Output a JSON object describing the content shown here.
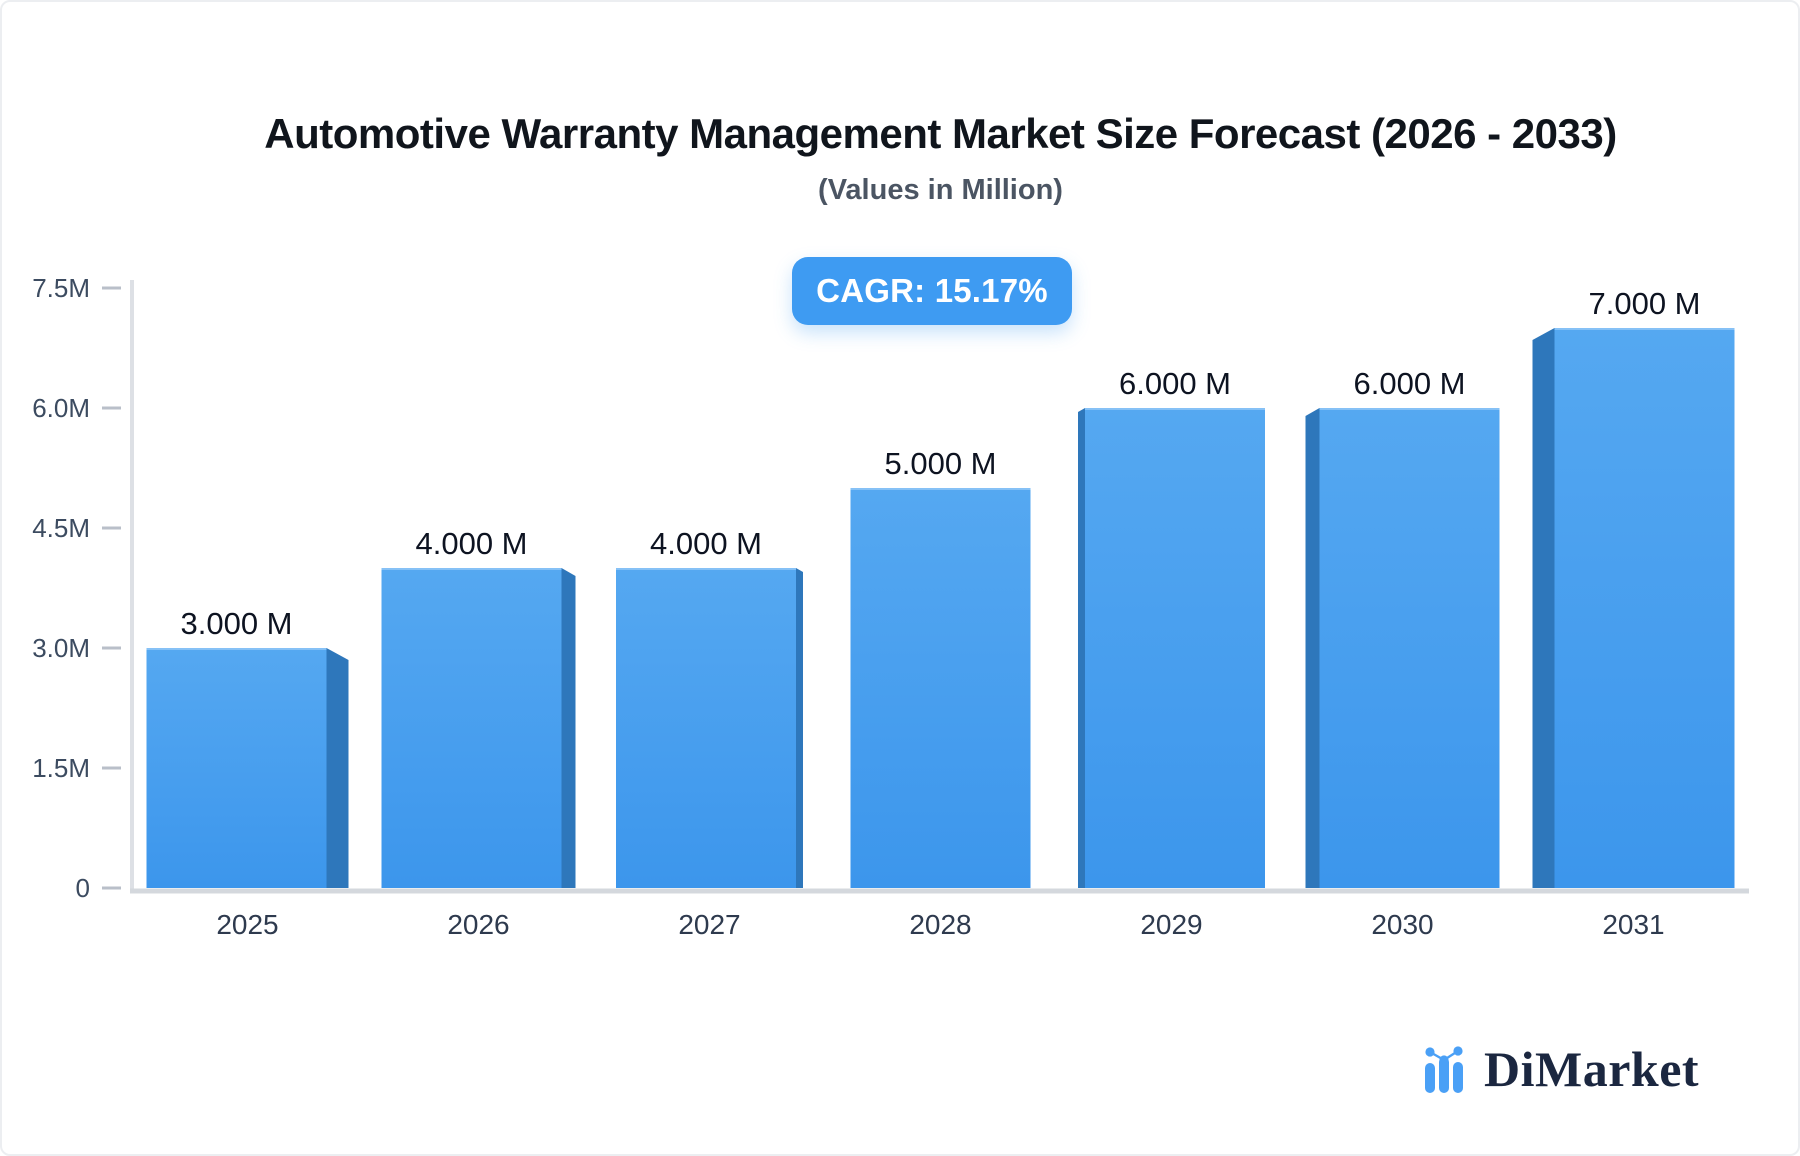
{
  "header": {
    "title": "Automotive Warranty Management Market Size Forecast (2026 - 2033)",
    "subtitle": "(Values in Million)",
    "cagr_label": "CAGR: 15.17%"
  },
  "chart_data": {
    "type": "bar",
    "title": "Automotive Warranty Management Market Size Forecast (2026 - 2033)",
    "subtitle": "(Values in Million)",
    "unit": "Million",
    "categories": [
      "2025",
      "2026",
      "2027",
      "2028",
      "2029",
      "2030",
      "2031"
    ],
    "values": [
      3,
      4,
      4,
      5,
      6,
      6,
      7
    ],
    "bar_labels": [
      "3.000 M",
      "4.000 M",
      "4.000 M",
      "5.000 M",
      "6.000 M",
      "6.000 M",
      "7.000 M"
    ],
    "ytick_labels": [
      "7.5M",
      "6.0M",
      "4.5M",
      "3.0M",
      "1.5M",
      "0"
    ],
    "ytick_values": [
      7.5,
      6.0,
      4.5,
      3.0,
      1.5,
      0
    ],
    "ylim": [
      0,
      7.5
    ],
    "xlabel": "",
    "ylabel": "",
    "grid": "off",
    "legend": "none",
    "cagr": "15.17%",
    "bar_front_color_top": "#55a8f1",
    "bar_front_color_bottom": "#3c96ec",
    "bar_side_color": "#2e77bb",
    "style": "3d-column"
  },
  "footer": {
    "brand": "DiMarket"
  },
  "colors": {
    "badge_bg": "#3e9bf2",
    "axis_line": "#dde0e5",
    "tick_dash": "#b9bfc9",
    "tick_label": "#3c4b60",
    "value_label": "#0d1321",
    "logo_blue": "#4aa0f6",
    "logo_navy": "#1b2740"
  }
}
